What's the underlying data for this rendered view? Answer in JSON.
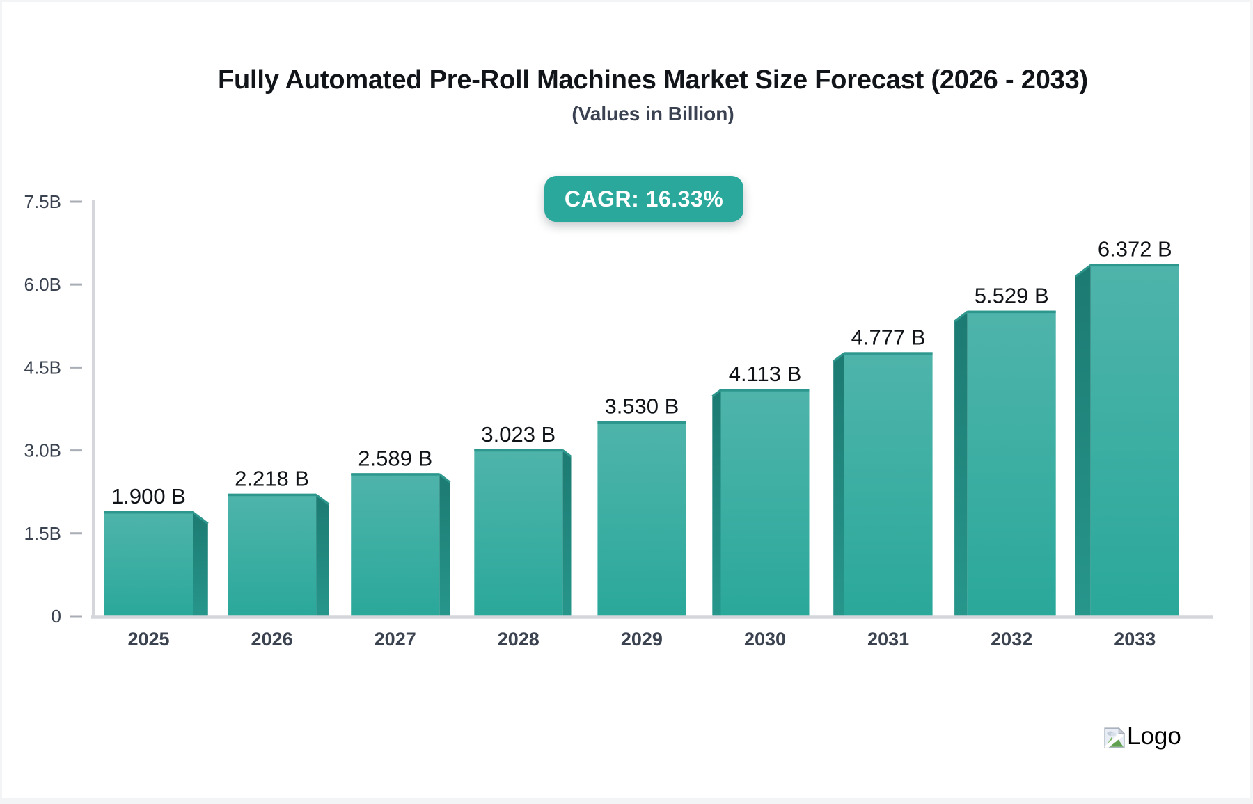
{
  "title": "Fully Automated Pre-Roll Machines Market Size Forecast (2026 - 2033)",
  "subtitle": "(Values in Billion)",
  "badge": {
    "label": "CAGR: 16.33%"
  },
  "logo": {
    "text": "Logo"
  },
  "colors": {
    "bar_face_top": "#4FB4AB",
    "bar_face_bottom": "#2AA89A",
    "bar_side_top": "#1C7A72",
    "bar_side_bottom": "#27968B",
    "bar_top_edge": "#2E978D",
    "badge_bg": "#2AA89C",
    "axis_line": "#D4D6DB",
    "tick_mark": "#A9AEB6",
    "axis_label": "#3B4351",
    "value_label": "#0F1317",
    "title_color": "#111419",
    "subtitle_color": "#3A4150"
  },
  "chart_data": {
    "type": "bar",
    "style": "3d-perspective-columns",
    "title": "Fully Automated Pre-Roll Machines Market Size Forecast (2026 - 2033)",
    "subtitle": "(Values in Billion)",
    "cagr": "16.33%",
    "unit": "Billion",
    "categories": [
      "2025",
      "2026",
      "2027",
      "2028",
      "2029",
      "2030",
      "2031",
      "2032",
      "2033"
    ],
    "values": [
      1.9,
      2.218,
      2.589,
      3.023,
      3.53,
      4.113,
      4.777,
      5.529,
      6.372
    ],
    "value_labels": [
      "1.900 B",
      "2.218 B",
      "2.589 B",
      "3.023 B",
      "3.530 B",
      "4.113 B",
      "4.777 B",
      "5.529 B",
      "6.372 B"
    ],
    "y_ticks": [
      {
        "label": "0",
        "value": 0
      },
      {
        "label": "1.5B",
        "value": 1.5
      },
      {
        "label": "3.0B",
        "value": 3.0
      },
      {
        "label": "4.5B",
        "value": 4.5
      },
      {
        "label": "6.0B",
        "value": 6.0
      },
      {
        "label": "7.5B",
        "value": 7.5
      }
    ],
    "ylim": [
      0,
      7.5
    ],
    "grid": false,
    "legend": null
  }
}
